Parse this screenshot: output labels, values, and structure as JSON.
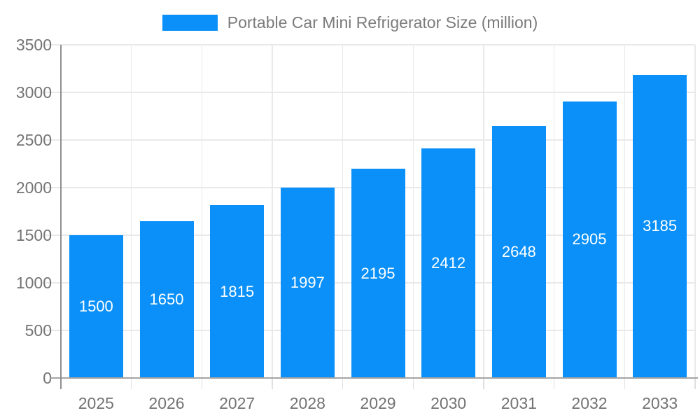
{
  "chart_data": {
    "type": "bar",
    "title": "Portable Car Mini Refrigerator Size (million)",
    "categories": [
      "2025",
      "2026",
      "2027",
      "2028",
      "2029",
      "2030",
      "2031",
      "2032",
      "2033"
    ],
    "values": [
      1500,
      1650,
      1815,
      1997,
      2195,
      2412,
      2648,
      2905,
      3185
    ],
    "bar_labels": [
      "1500",
      "1650",
      "1815",
      "1997",
      "2195",
      "2412",
      "2648",
      "2905",
      "3185"
    ],
    "xlabel": "",
    "ylabel": "",
    "ylim": [
      0,
      3500
    ],
    "ytick_step": 500,
    "yticks": [
      0,
      500,
      1000,
      1500,
      2000,
      2500,
      3000,
      3500
    ],
    "grid": "on",
    "legend_position": "top-center",
    "colors": {
      "bar": "#0a90f8",
      "bar_value_text": "#ffffff",
      "axis_text": "#737373",
      "legend_text": "#7a7a7a",
      "gridline": "#e9e9e9",
      "y_axis_line": "#8f8f8f",
      "x_axis_line": "#a5a5a5",
      "background": "#ffffff"
    }
  }
}
